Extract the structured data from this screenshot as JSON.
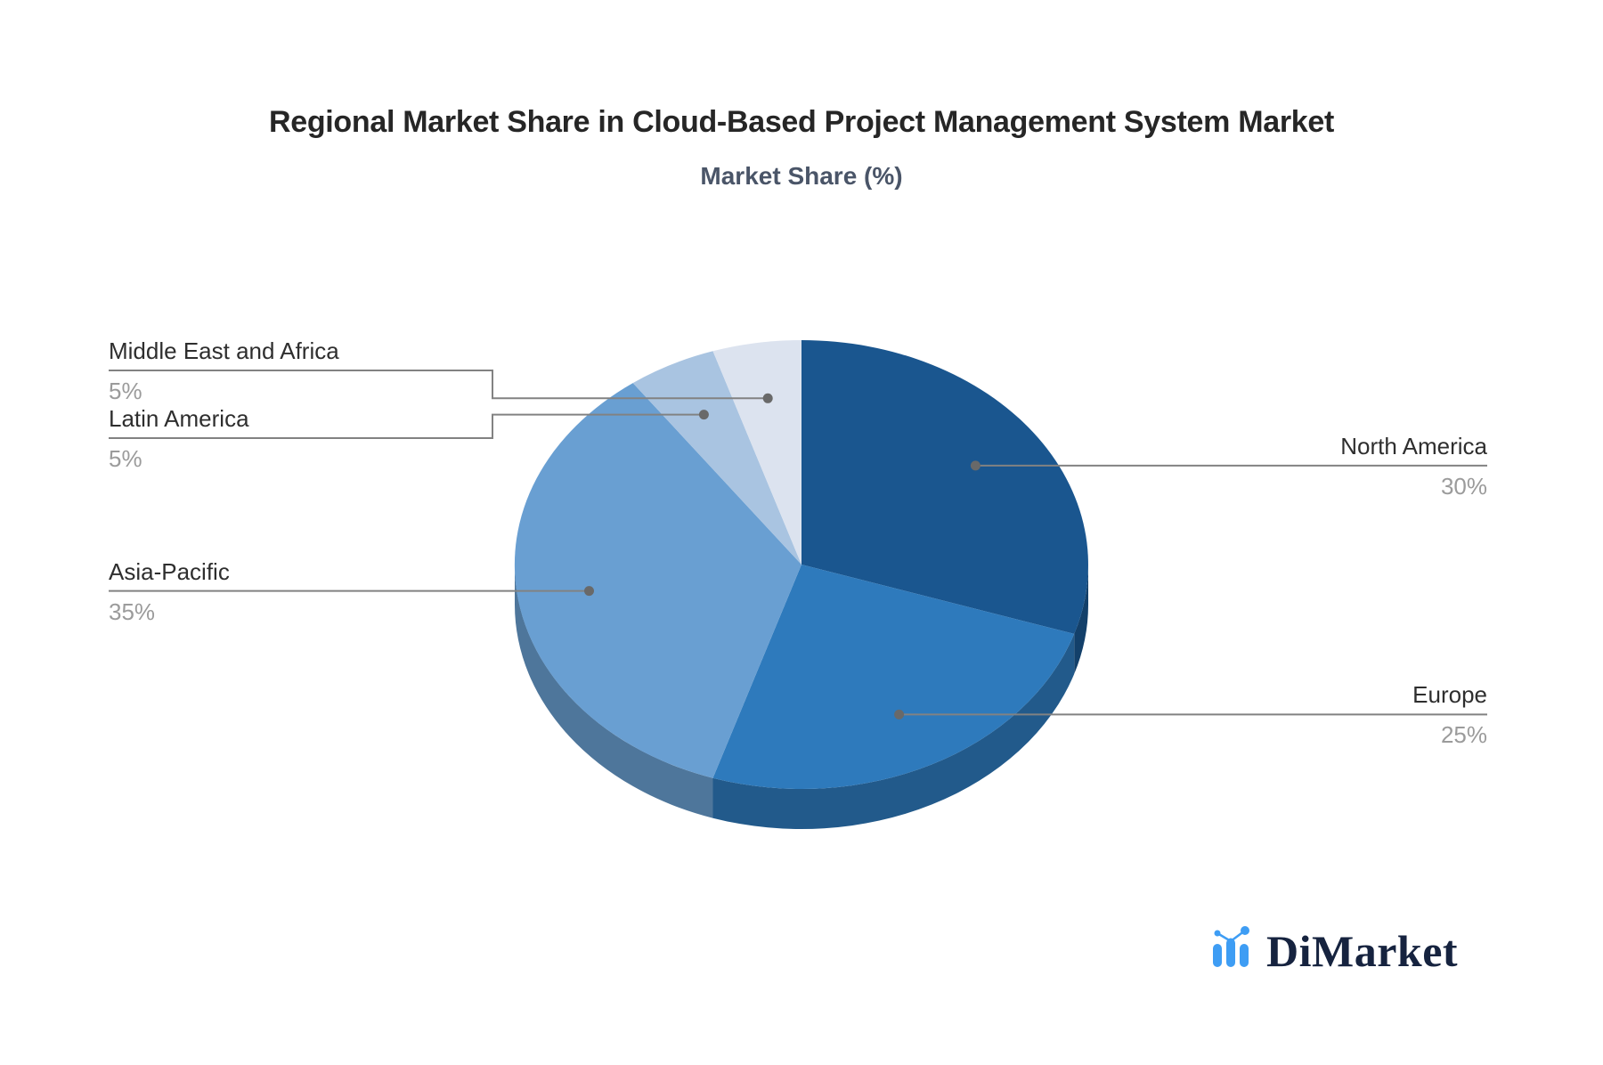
{
  "title": "Regional Market Share in Cloud-Based Project Management System Market",
  "subtitle": "Market Share (%)",
  "logo": {
    "text": "DiMarket"
  },
  "chart_data": {
    "type": "pie",
    "title": "Regional Market Share in Cloud-Based Project Management System Market",
    "subtitle": "Market Share (%)",
    "unit": "%",
    "style": "3d-pie",
    "start_angle": "12-o-clock",
    "direction": "clockwise",
    "legend_position": "callout-labels",
    "segments": [
      {
        "label": "North America",
        "value": 30,
        "color": "#1a568f",
        "callout_side": "right"
      },
      {
        "label": "Europe",
        "value": 25,
        "color": "#2e7abc",
        "callout_side": "right"
      },
      {
        "label": "Asia-Pacific",
        "value": 35,
        "color": "#699fd2",
        "callout_side": "left"
      },
      {
        "label": "Latin America",
        "value": 5,
        "color": "#a9c4e1",
        "callout_side": "left"
      },
      {
        "label": "Middle East and Africa",
        "value": 5,
        "color": "#dce3ef",
        "callout_side": "left"
      }
    ],
    "colors": {
      "leader_line": "#828282",
      "leader_dot": "#696969",
      "label_text": "#2e2e2e",
      "value_text": "#9b9b9b",
      "title_text": "#262626",
      "subtitle_text": "#4a5568",
      "logo_text": "#16233f",
      "logo_icon": "#3e9df4"
    }
  }
}
